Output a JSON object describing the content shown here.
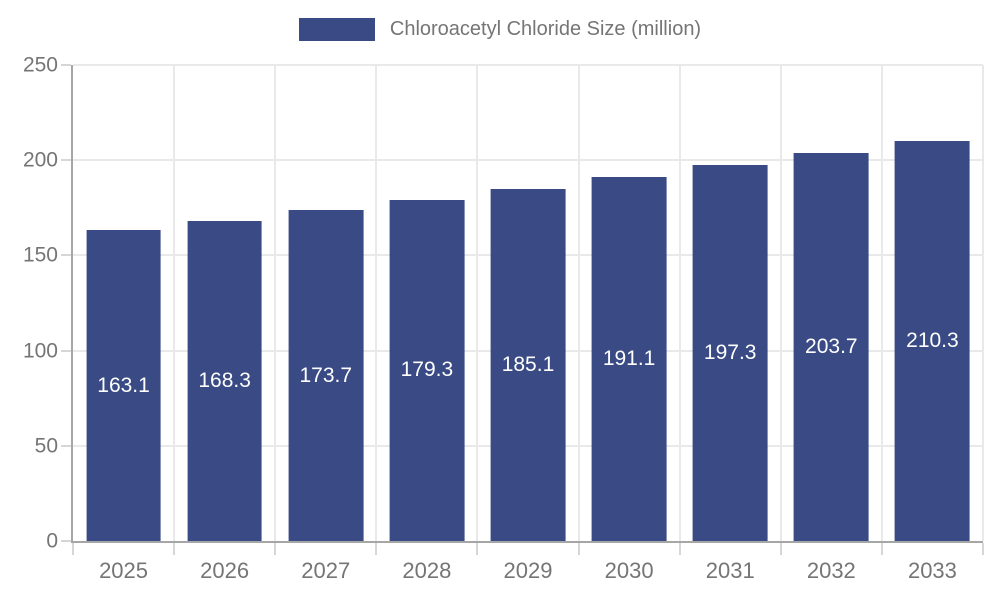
{
  "legend": {
    "label": "Chloroacetyl Chloride Size (million)"
  },
  "colors": {
    "bar": "#394A85",
    "grid": "#e9e9e9",
    "axis_line": "#a6a6a6",
    "tick": "#d6d6d6",
    "axis_text": "#757575",
    "value_label": "#ffffff",
    "background": "#ffffff"
  },
  "chart_data": {
    "type": "bar",
    "title": "",
    "xlabel": "",
    "ylabel": "",
    "series_name": "Chloroacetyl Chloride Size (million)",
    "categories": [
      "2025",
      "2026",
      "2027",
      "2028",
      "2029",
      "2030",
      "2031",
      "2032",
      "2033"
    ],
    "values": [
      163.1,
      168.3,
      173.7,
      179.3,
      185.1,
      191.1,
      197.3,
      203.7,
      210.3
    ],
    "ylim": [
      0,
      250
    ],
    "yticks": [
      0,
      50,
      100,
      150,
      200,
      250
    ],
    "grid": true,
    "legend_position": "top",
    "value_label_position": "inside-center"
  }
}
